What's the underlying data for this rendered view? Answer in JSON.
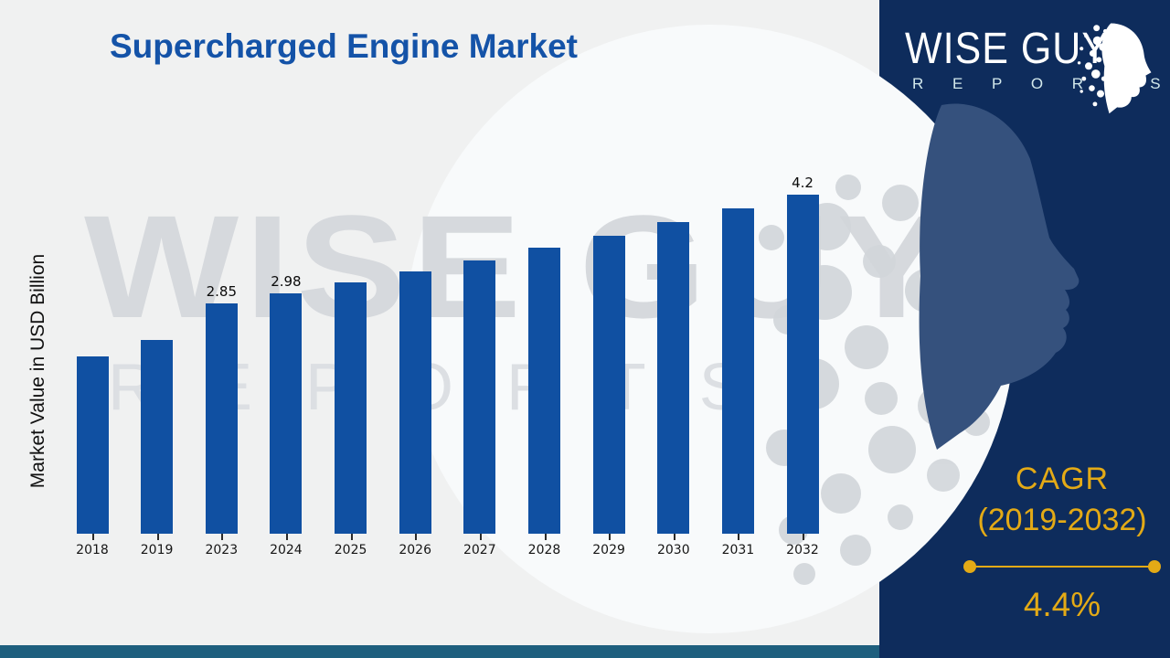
{
  "title": "Supercharged Engine Market",
  "watermark": {
    "line1": "WISE GUY",
    "line2": "REPORTS"
  },
  "logo": {
    "line1": "WISE GUY",
    "line2": "R E P O R T S"
  },
  "cagr": {
    "heading": "CAGR",
    "range": "(2019-2032)",
    "value": "4.4%"
  },
  "colors": {
    "panel_navy": "#0e2c5c",
    "accent_gold": "#e3aa16",
    "title_blue": "#1453a8",
    "teal_strip": "#1e5f7e",
    "face_blue": "#35517d",
    "background": "#f0f1f1"
  },
  "chart_data": {
    "type": "bar",
    "title": "Supercharged Engine Market",
    "xlabel": "",
    "ylabel": "Market Value in USD Billion",
    "categories": [
      "2018",
      "2019",
      "2023",
      "2024",
      "2025",
      "2026",
      "2027",
      "2028",
      "2029",
      "2030",
      "2031",
      "2032"
    ],
    "values": [
      2.2,
      2.4,
      2.85,
      2.98,
      3.11,
      3.25,
      3.39,
      3.54,
      3.69,
      3.86,
      4.03,
      4.2
    ],
    "data_labels": {
      "2023": "2.85",
      "2024": "2.98",
      "2032": "4.2"
    },
    "bar_color": "#1050a2",
    "ylim": [
      0,
      4.2
    ],
    "grid": false,
    "legend": false
  }
}
